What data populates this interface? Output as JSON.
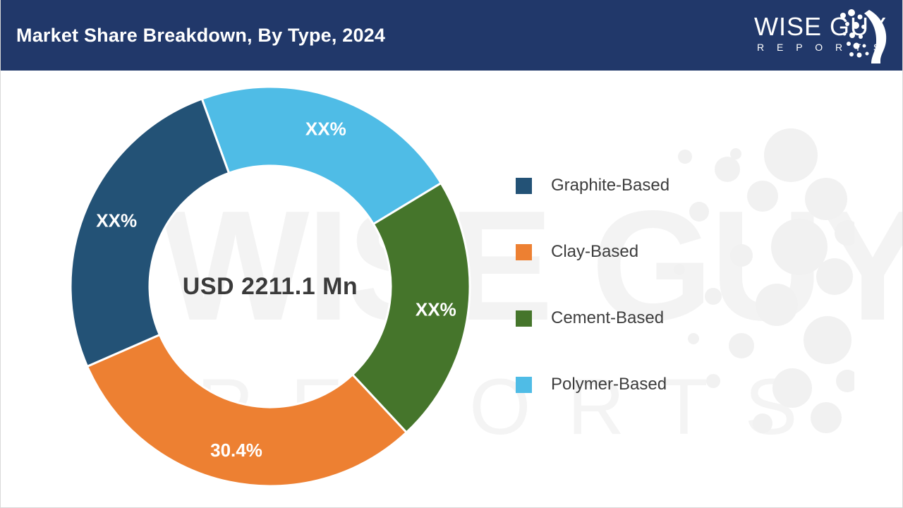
{
  "header": {
    "title": "Market Share Breakdown, By Type, 2024",
    "bg_color": "#21386A",
    "logo": {
      "line1": "WISE GUY",
      "line2": "R E P O R T S"
    }
  },
  "watermark": {
    "line1": "WISE GUY",
    "line2": "REPORTS"
  },
  "chart_data": {
    "type": "pie",
    "subtype": "donut",
    "title": "Market Share Breakdown, By Type, 2024",
    "center_label": "USD 2211.1 Mn",
    "legend_position": "right",
    "start_angle_deg": 340,
    "clockwise_order": [
      3,
      2,
      1,
      0
    ],
    "segments": [
      {
        "label": "Graphite-Based",
        "value_pct": 26.0,
        "display_label": "XX%",
        "color": "#235276"
      },
      {
        "label": "Clay-Based",
        "value_pct": 30.4,
        "display_label": "30.4%",
        "color": "#ED8032"
      },
      {
        "label": "Cement-Based",
        "value_pct": 21.7,
        "display_label": "XX%",
        "color": "#45752B"
      },
      {
        "label": "Polymer-Based",
        "value_pct": 21.9,
        "display_label": "XX%",
        "color": "#4FBCE6"
      }
    ]
  }
}
